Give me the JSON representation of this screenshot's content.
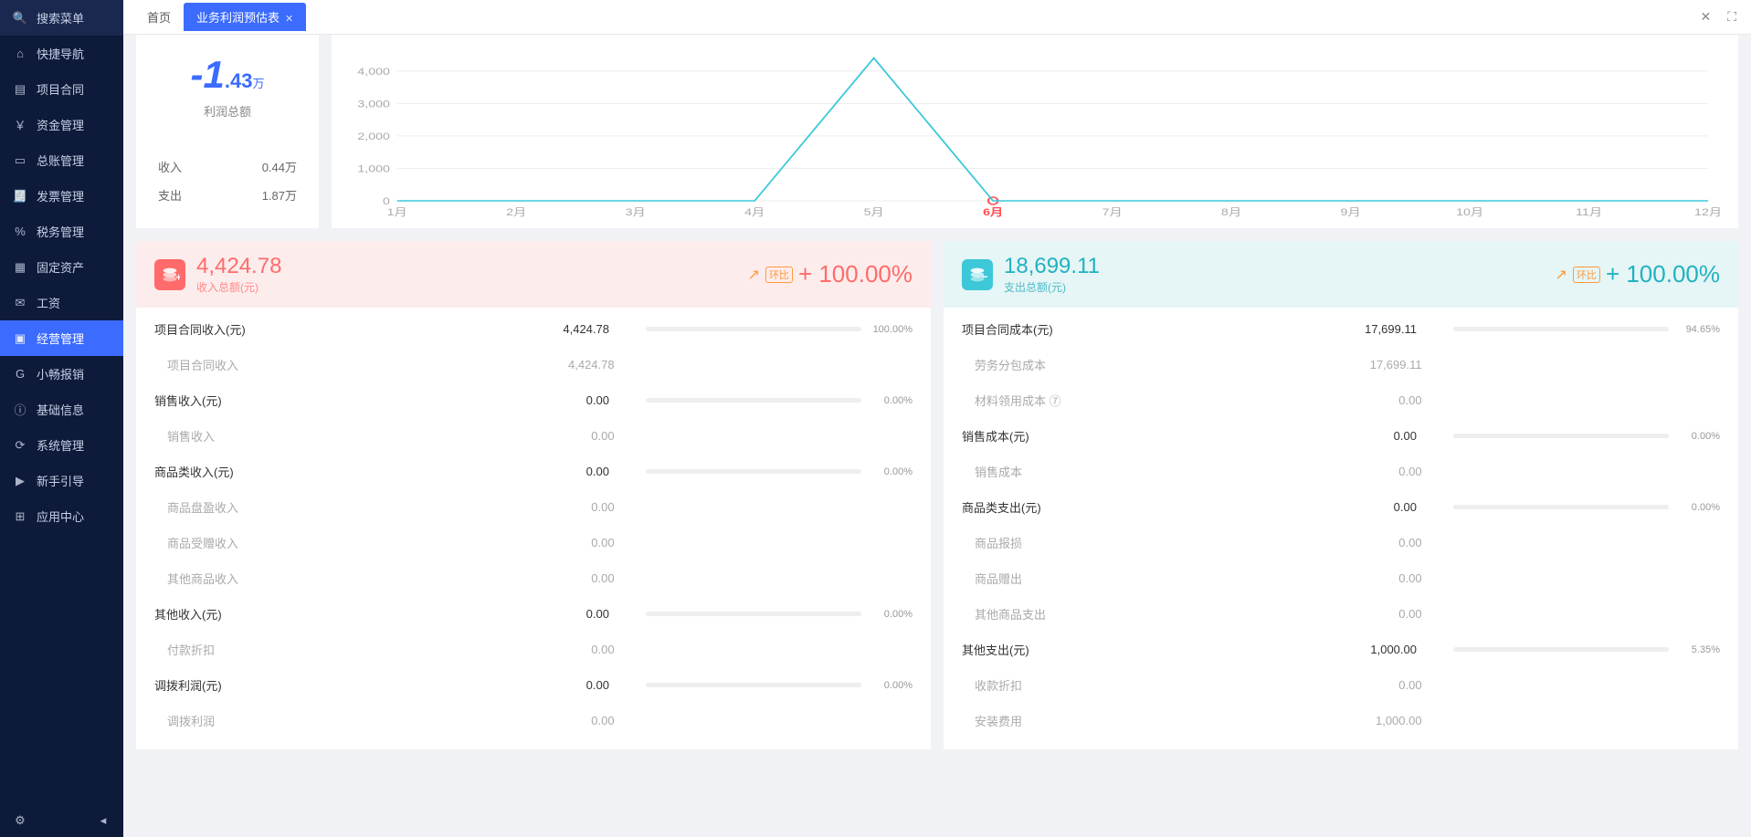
{
  "sidebar": {
    "items": [
      {
        "label": "搜索菜单",
        "icon": "search"
      },
      {
        "label": "快捷导航",
        "icon": "home"
      },
      {
        "label": "项目合同",
        "icon": "file"
      },
      {
        "label": "资金管理",
        "icon": "money"
      },
      {
        "label": "总账管理",
        "icon": "ledger"
      },
      {
        "label": "发票管理",
        "icon": "invoice"
      },
      {
        "label": "税务管理",
        "icon": "tax"
      },
      {
        "label": "固定资产",
        "icon": "asset"
      },
      {
        "label": "工资",
        "icon": "salary"
      },
      {
        "label": "经营管理",
        "icon": "biz",
        "active": true
      },
      {
        "label": "小畅报销",
        "icon": "report"
      },
      {
        "label": "基础信息",
        "icon": "info"
      },
      {
        "label": "系统管理",
        "icon": "sys"
      },
      {
        "label": "新手引导",
        "icon": "guide"
      },
      {
        "label": "应用中心",
        "icon": "apps"
      }
    ]
  },
  "tabs": [
    {
      "label": "首页"
    },
    {
      "label": "业务利润预估表",
      "active": true,
      "closable": true
    }
  ],
  "stat": {
    "big_int": "-1",
    "big_dec": ".43",
    "big_unit": "万",
    "label": "利润总额",
    "rows": [
      {
        "name": "收入",
        "val": "0.44万"
      },
      {
        "name": "支出",
        "val": "1.87万"
      }
    ]
  },
  "chart": {
    "type": "line",
    "y_ticks": [
      0,
      1000,
      2000,
      3000,
      4000
    ],
    "y_labels": [
      "0",
      "1,000",
      "2,000",
      "3,000",
      "4,000"
    ],
    "ylim": [
      0,
      4500
    ],
    "x_labels": [
      "1月",
      "2月",
      "3月",
      "4月",
      "5月",
      "6月",
      "7月",
      "8月",
      "9月",
      "10月",
      "11月",
      "12月"
    ],
    "highlight_x": 5,
    "values": [
      0,
      0,
      0,
      0,
      4400,
      0,
      0,
      0,
      0,
      0,
      0,
      0
    ],
    "line_color": "#3cc8d9",
    "grid_color": "#eeeeee",
    "label_color": "#aaaaaa",
    "highlight_color": "#ff4d4f"
  },
  "income": {
    "amount": "4,424.78",
    "label": "收入总额(元)",
    "hb": "环比",
    "pct": "+ 100.00%",
    "header_bg": "#fdecec",
    "accent": "#ff6b6b",
    "rows": [
      {
        "name": "项目合同收入(元)",
        "val": "4,424.78",
        "bar": 100,
        "pct": "100.00%"
      },
      {
        "name": "项目合同收入",
        "val": "4,424.78",
        "sub": true
      },
      {
        "name": "销售收入(元)",
        "val": "0.00",
        "bar": 0,
        "pct": "0.00%"
      },
      {
        "name": "销售收入",
        "val": "0.00",
        "sub": true
      },
      {
        "name": "商品类收入(元)",
        "val": "0.00",
        "bar": 0,
        "pct": "0.00%"
      },
      {
        "name": "商品盘盈收入",
        "val": "0.00",
        "sub": true
      },
      {
        "name": "商品受赠收入",
        "val": "0.00",
        "sub": true
      },
      {
        "name": "其他商品收入",
        "val": "0.00",
        "sub": true
      },
      {
        "name": "其他收入(元)",
        "val": "0.00",
        "bar": 0,
        "pct": "0.00%"
      },
      {
        "name": "付款折扣",
        "val": "0.00",
        "sub": true
      },
      {
        "name": "调拨利润(元)",
        "val": "0.00",
        "bar": 0,
        "pct": "0.00%"
      },
      {
        "name": "调拨利润",
        "val": "0.00",
        "sub": true
      }
    ]
  },
  "expense": {
    "amount": "18,699.11",
    "label": "支出总额(元)",
    "hb": "环比",
    "pct": "+ 100.00%",
    "header_bg": "#e6f5f5",
    "accent": "#20b2c2",
    "rows": [
      {
        "name": "项目合同成本(元)",
        "val": "17,699.11",
        "bar": 94.65,
        "pct": "94.65%"
      },
      {
        "name": "劳务分包成本",
        "val": "17,699.11",
        "sub": true
      },
      {
        "name": "材料领用成本 ⑦",
        "val": "0.00",
        "sub": true
      },
      {
        "name": "销售成本(元)",
        "val": "0.00",
        "bar": 0,
        "pct": "0.00%"
      },
      {
        "name": "销售成本",
        "val": "0.00",
        "sub": true
      },
      {
        "name": "商品类支出(元)",
        "val": "0.00",
        "bar": 0,
        "pct": "0.00%"
      },
      {
        "name": "商品报损",
        "val": "0.00",
        "sub": true
      },
      {
        "name": "商品赠出",
        "val": "0.00",
        "sub": true
      },
      {
        "name": "其他商品支出",
        "val": "0.00",
        "sub": true
      },
      {
        "name": "其他支出(元)",
        "val": "1,000.00",
        "bar": 5.35,
        "pct": "5.35%"
      },
      {
        "name": "收款折扣",
        "val": "0.00",
        "sub": true
      },
      {
        "name": "安装费用",
        "val": "1,000.00",
        "sub": true
      }
    ]
  },
  "colors": {
    "sidebar_bg": "#0e1a3a",
    "active_bg": "#3b6bff",
    "bar_fill": "#1fd0e0",
    "bar_bg": "#eeeeee"
  }
}
